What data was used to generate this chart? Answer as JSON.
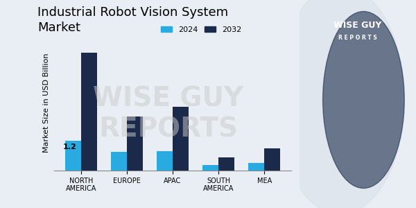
{
  "title": "Industrial Robot Vision System\nMarket",
  "ylabel": "Market Size in USD Billion",
  "categories": [
    "NORTH\nAMERICA",
    "EUROPE",
    "APAC",
    "SOUTH\nAMERICA",
    "MEA"
  ],
  "values_2024": [
    1.2,
    0.75,
    0.8,
    0.22,
    0.3
  ],
  "values_2032": [
    4.8,
    2.2,
    2.6,
    0.55,
    0.9
  ],
  "color_2024": "#29ABE2",
  "color_2032": "#1B2A4A",
  "annotation_value": "1.2",
  "bg_color": "#E8EEF4",
  "right_panel_color": "#1B2A4A",
  "legend_labels": [
    "2024",
    "2032"
  ],
  "bar_width": 0.35,
  "title_fontsize": 13,
  "ylabel_fontsize": 8,
  "tick_fontsize": 7,
  "legend_fontsize": 8
}
